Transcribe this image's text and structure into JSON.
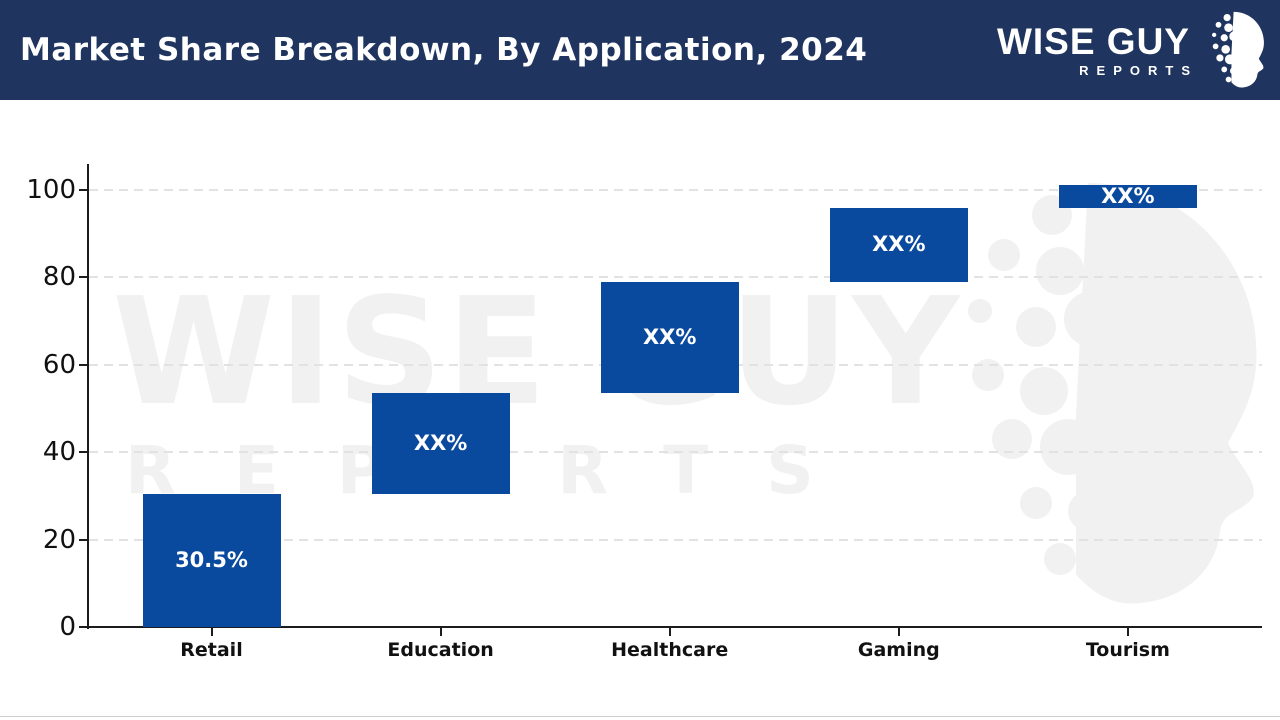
{
  "header": {
    "title": "Market Share Breakdown, By Application, 2024",
    "logo": {
      "line1": "WISE GUY",
      "line2": "REPORTS"
    }
  },
  "watermark": {
    "line1": "WISE GUY",
    "line2": "REPORTS"
  },
  "chart_data": {
    "type": "bar",
    "subtype": "waterfall",
    "title": "Market Share Breakdown, By Application, 2024",
    "categories": [
      "Retail",
      "Education",
      "Healthcare",
      "Gaming",
      "Tourism"
    ],
    "segments": [
      {
        "from": 0,
        "to": 30.5,
        "label": "30.5%"
      },
      {
        "from": 30.5,
        "to": 53.5,
        "label": "XX%"
      },
      {
        "from": 53.5,
        "to": 79,
        "label": "XX%"
      },
      {
        "from": 79,
        "to": 95.8,
        "label": "XX%"
      },
      {
        "from": 95.8,
        "to": 101,
        "label": "XX%"
      }
    ],
    "yticks": [
      0,
      20,
      40,
      60,
      80,
      100
    ],
    "ylim": [
      0,
      106
    ],
    "grid": "dashed horizontal, behind bars",
    "legend": "none",
    "xlabel": "",
    "ylabel": ""
  },
  "colors": {
    "header_bg": "#1f355f",
    "bar": "#0a4a9e",
    "bar_label": "#ffffff",
    "grid": "#e2e2e2",
    "axis": "#1c1c1c",
    "tick_text": "#111111",
    "watermark": "#f1f1f1",
    "bottom_line": "#cfcfcf"
  }
}
